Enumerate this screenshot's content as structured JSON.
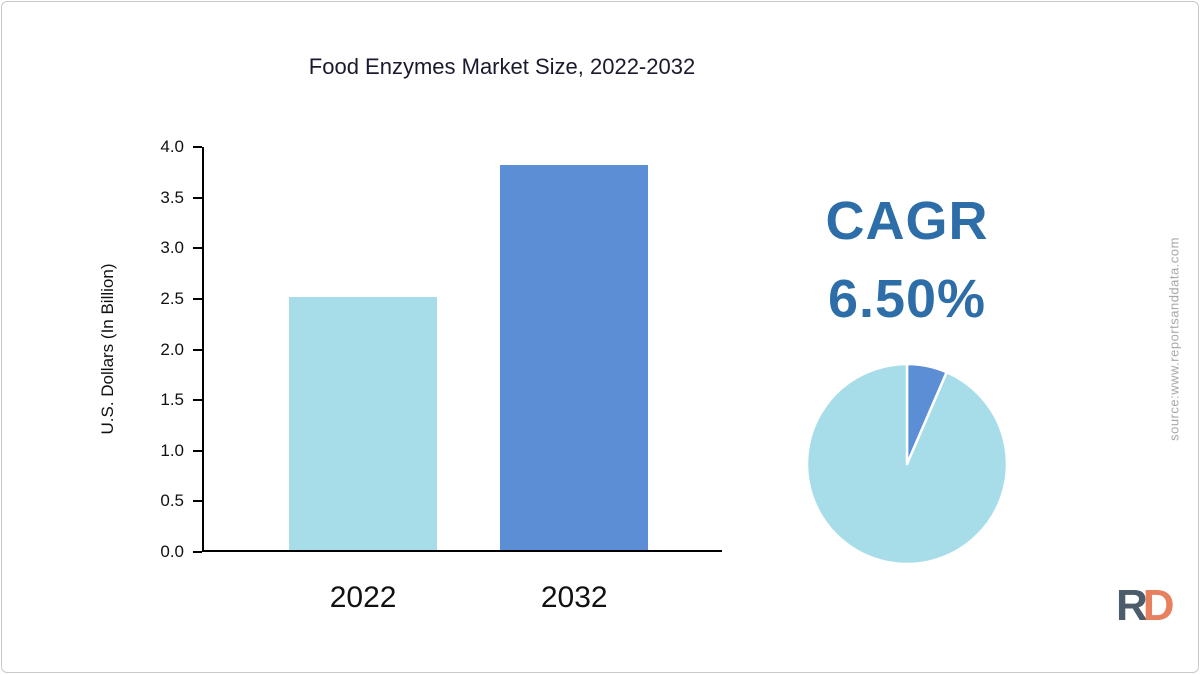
{
  "page": {
    "background": "#ffffff",
    "border_color": "#c9c9c9"
  },
  "chart_data": [
    {
      "type": "bar",
      "title": "Food Enzymes Market Size, 2022-2032",
      "categories": [
        "2022",
        "2032"
      ],
      "values": [
        2.5,
        3.8
      ],
      "xlabel": "",
      "ylabel": "U.S. Dollars (In Billion)",
      "ylim": [
        0,
        4.0
      ],
      "ytick_step": 0.5,
      "bar_colors": [
        "#a7dde9",
        "#5b8ed5"
      ],
      "grid": false,
      "legend": "none"
    },
    {
      "type": "pie",
      "values": [
        6.5,
        93.5
      ],
      "colors": [
        "#5b8ed5",
        "#a7dde9"
      ],
      "start_angle_deg": -90,
      "note": "small slice represents CAGR 6.50%"
    }
  ],
  "cagr": {
    "label": "CAGR",
    "value": "6.50%",
    "color": "#2d6da8"
  },
  "source_text": "source:www.reportsanddata.com",
  "logo": {
    "letter_r": "R",
    "letter_d": "D",
    "r_color": "#4d5c6b",
    "d_color": "#e8805f"
  }
}
